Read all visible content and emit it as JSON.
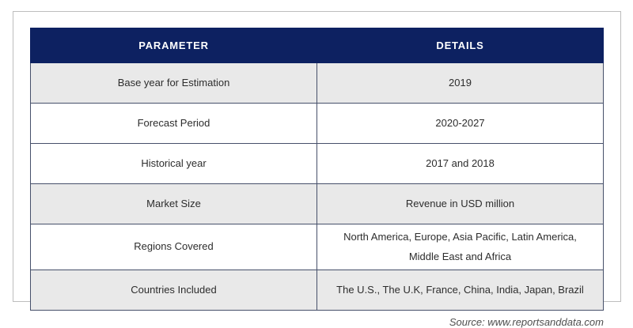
{
  "table": {
    "headers": [
      "PARAMETER",
      "DETAILS"
    ],
    "rows": [
      {
        "parameter": "Base year for Estimation",
        "details": "2019"
      },
      {
        "parameter": "Forecast Period",
        "details": "2020-2027"
      },
      {
        "parameter": "Historical year",
        "details": "2017 and 2018"
      },
      {
        "parameter": "Market Size",
        "details": "Revenue in USD million"
      },
      {
        "parameter": "Regions Covered",
        "details": "North America, Europe, Asia Pacific, Latin America,\nMiddle East and Africa"
      },
      {
        "parameter": "Countries Included",
        "details": "The U.S., The  U.K, France, China, India, Japan, Brazil"
      }
    ]
  },
  "source": {
    "label": "Source: www.reportsanddata.com"
  },
  "colors": {
    "header_bg": "#0d2161",
    "header_text": "#ffffff",
    "shaded_row_bg": "#e9e9e9",
    "row_bg": "#ffffff",
    "cell_border": "#46506a",
    "table_border": "#35426b",
    "card_border": "#bdbdbd",
    "body_text": "#2d2d2d",
    "source_text": "#4f4f4f"
  }
}
